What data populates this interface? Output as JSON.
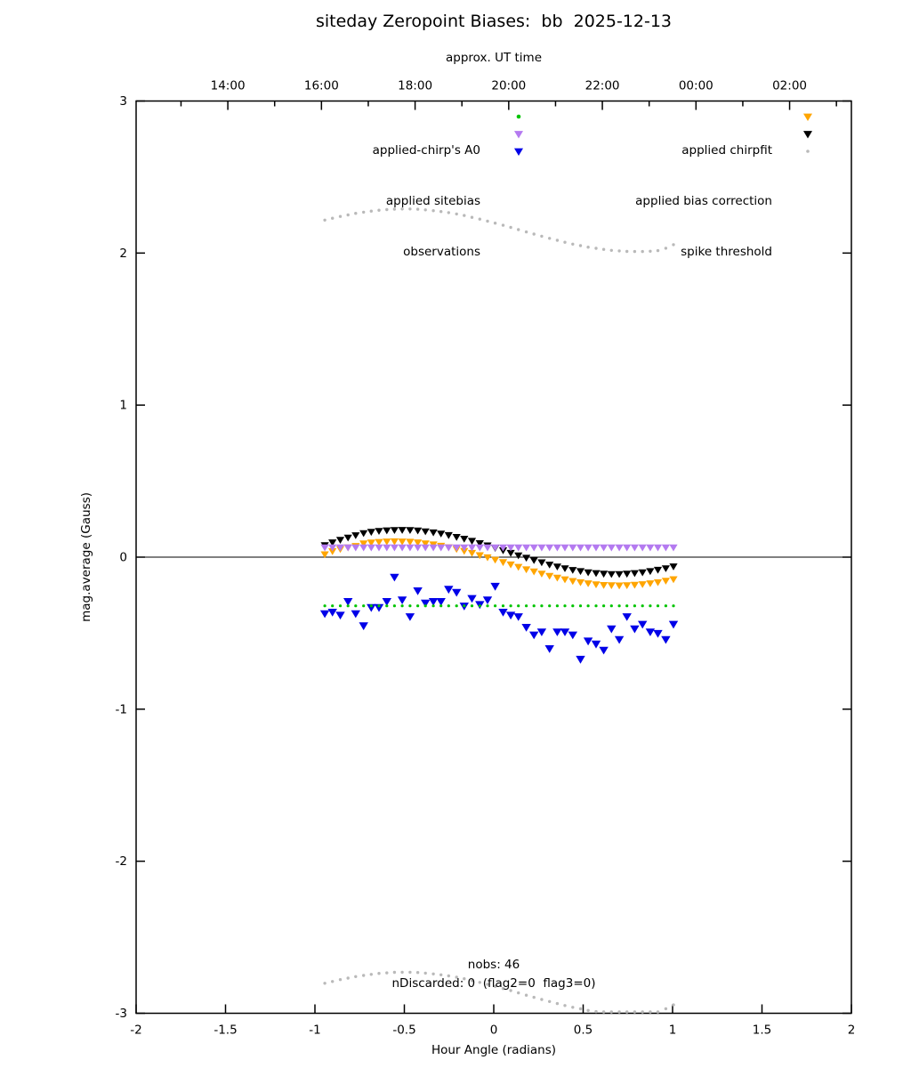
{
  "title": "siteday Zeropoint Biases:  bb  2025-12-13",
  "annotations": {
    "nobs": "nobs: 46",
    "ndiscarded": "nDiscarded: 0  (flag2=0  flag3=0)"
  },
  "colors": {
    "a0_green": "#00c400",
    "sitebias_purple": "#b47af0",
    "observations_blue": "#0000e8",
    "chirpfit_orange": "#ffa500",
    "bias_black": "#000000",
    "spike_gray": "#b9b9b9",
    "frame": "#000000",
    "background": "#ffffff"
  },
  "axes": {
    "x2": {
      "label": "approx. UT time",
      "major": [
        {
          "label": "14:00",
          "ha": -1.4871
        },
        {
          "label": "16:00",
          "ha": -0.9635
        },
        {
          "label": "18:00",
          "ha": -0.4399
        },
        {
          "label": "20:00",
          "ha": 0.0837
        },
        {
          "label": "22:00",
          "ha": 0.6073
        },
        {
          "label": "00:00",
          "ha": 1.1309
        },
        {
          "label": "02:00",
          "ha": 1.6545
        }
      ],
      "minor_ha": [
        -1.7489,
        -1.2253,
        -0.7017,
        -0.1781,
        0.3455,
        0.8691,
        1.3927,
        1.9163
      ]
    },
    "x": {
      "label": "Hour Angle (radians)",
      "range": [
        -2,
        2
      ],
      "ticks": [
        {
          "label": "-2",
          "v": -2
        },
        {
          "label": "-1.5",
          "v": -1.5
        },
        {
          "label": "-1",
          "v": -1
        },
        {
          "label": "-0.5",
          "v": -0.5
        },
        {
          "label": "0",
          "v": 0
        },
        {
          "label": "0.5",
          "v": 0.5
        },
        {
          "label": "1",
          "v": 1
        },
        {
          "label": "1.5",
          "v": 1.5
        },
        {
          "label": "2",
          "v": 2
        }
      ]
    },
    "y": {
      "label": "mag.average (Gauss)",
      "range": [
        -3,
        3
      ],
      "ticks": [
        {
          "label": "3",
          "v": 3
        },
        {
          "label": "2",
          "v": 2
        },
        {
          "label": "1",
          "v": 1
        },
        {
          "label": "0",
          "v": 0
        },
        {
          "label": "-1",
          "v": -1
        },
        {
          "label": "-2",
          "v": -2
        },
        {
          "label": "-3",
          "v": -3
        }
      ],
      "zero_line": true
    }
  },
  "legend": {
    "left": [
      {
        "label": "applied-chirp's A0",
        "marker": "dot",
        "color": "#00c400",
        "size": 2.3
      },
      {
        "label": "applied sitebias",
        "marker": "triangle-down",
        "color": "#b47af0",
        "size": 5
      },
      {
        "label": "observations",
        "marker": "triangle-down",
        "color": "#0000e8",
        "size": 5
      }
    ],
    "right": [
      {
        "label": "applied chirpfit",
        "marker": "triangle-down",
        "color": "#ffa500",
        "size": 5
      },
      {
        "label": "applied bias correction",
        "marker": "triangle-down",
        "color": "#000000",
        "size": 5
      },
      {
        "label": "spike threshold",
        "marker": "dot",
        "color": "#b9b9b9",
        "size": 1.8
      }
    ]
  },
  "chart_data": {
    "type": "scatter",
    "title": "siteday Zeropoint Biases:  bb  2025-12-13",
    "xlabel": "Hour Angle (radians)",
    "x2label": "approx. UT time",
    "ylabel": "mag.average (Gauss)",
    "xlim": [
      -2,
      2
    ],
    "ylim": [
      -3,
      3
    ],
    "grid": false,
    "legend_position": "top-inside-two-columns",
    "nobs": 46,
    "x": [
      -0.945,
      -0.902,
      -0.858,
      -0.815,
      -0.772,
      -0.728,
      -0.685,
      -0.642,
      -0.598,
      -0.555,
      -0.512,
      -0.468,
      -0.425,
      -0.382,
      -0.338,
      -0.295,
      -0.252,
      -0.208,
      -0.165,
      -0.122,
      -0.078,
      -0.035,
      0.008,
      0.052,
      0.095,
      0.138,
      0.182,
      0.225,
      0.268,
      0.312,
      0.355,
      0.398,
      0.442,
      0.485,
      0.528,
      0.572,
      0.615,
      0.658,
      0.702,
      0.745,
      0.788,
      0.832,
      0.875,
      0.918,
      0.962,
      1.005
    ],
    "series": [
      {
        "id": "bias-correction",
        "name": "applied bias correction",
        "marker": "triangle-down",
        "color": "#000000",
        "size": 4.6,
        "y": [
          0.08,
          0.098,
          0.115,
          0.13,
          0.145,
          0.159,
          0.167,
          0.173,
          0.177,
          0.179,
          0.18,
          0.179,
          0.176,
          0.171,
          0.164,
          0.156,
          0.146,
          0.134,
          0.122,
          0.108,
          0.093,
          0.078,
          0.062,
          0.046,
          0.029,
          0.013,
          -0.003,
          -0.019,
          -0.033,
          -0.048,
          -0.061,
          -0.072,
          -0.083,
          -0.091,
          -0.099,
          -0.104,
          -0.108,
          -0.11,
          -0.11,
          -0.108,
          -0.104,
          -0.099,
          -0.091,
          -0.082,
          -0.072,
          -0.06
        ]
      },
      {
        "id": "chirpfit",
        "name": "applied chirpfit",
        "marker": "triangle-down",
        "color": "#ffa500",
        "size": 4.6,
        "y": [
          0.02,
          0.04,
          0.055,
          0.065,
          0.075,
          0.091,
          0.097,
          0.101,
          0.104,
          0.105,
          0.104,
          0.102,
          0.098,
          0.092,
          0.085,
          0.076,
          0.066,
          0.055,
          0.042,
          0.029,
          0.014,
          0.0,
          -0.016,
          -0.032,
          -0.047,
          -0.063,
          -0.079,
          -0.093,
          -0.107,
          -0.122,
          -0.134,
          -0.145,
          -0.156,
          -0.164,
          -0.171,
          -0.178,
          -0.182,
          -0.184,
          -0.185,
          -0.184,
          -0.181,
          -0.177,
          -0.171,
          -0.164,
          -0.154,
          -0.144
        ]
      },
      {
        "id": "sitebias",
        "name": "applied sitebias",
        "marker": "triangle-down",
        "color": "#b47af0",
        "size": 4.6,
        "y_flat": 0.065
      },
      {
        "id": "observations",
        "name": "observations",
        "marker": "triangle-down",
        "color": "#0000e8",
        "size": 5.2,
        "y": [
          -0.37,
          -0.36,
          -0.38,
          -0.29,
          -0.37,
          -0.45,
          -0.33,
          -0.33,
          -0.29,
          -0.13,
          -0.28,
          -0.39,
          -0.22,
          -0.3,
          -0.29,
          -0.29,
          -0.21,
          -0.23,
          -0.32,
          -0.27,
          -0.31,
          -0.28,
          -0.19,
          -0.36,
          -0.38,
          -0.39,
          -0.46,
          -0.51,
          -0.49,
          -0.6,
          -0.49,
          -0.49,
          -0.51,
          -0.67,
          -0.55,
          -0.57,
          -0.61,
          -0.47,
          -0.54,
          -0.39,
          -0.47,
          -0.44,
          -0.49,
          -0.5,
          -0.54,
          -0.44
        ]
      },
      {
        "id": "chirp-a0",
        "name": "applied-chirp's A0",
        "marker": "dot",
        "color": "#00c400",
        "size": 1.6,
        "y_flat": -0.32
      },
      {
        "id": "spike-upper",
        "name": "spike threshold upper",
        "marker": "dot",
        "color": "#b9b9b9",
        "size": 1.7,
        "y": [
          2.217,
          2.229,
          2.241,
          2.251,
          2.261,
          2.269,
          2.276,
          2.282,
          2.286,
          2.289,
          2.29,
          2.29,
          2.288,
          2.284,
          2.279,
          2.273,
          2.266,
          2.257,
          2.247,
          2.235,
          2.223,
          2.21,
          2.197,
          2.183,
          2.169,
          2.154,
          2.139,
          2.125,
          2.111,
          2.097,
          2.084,
          2.071,
          2.059,
          2.049,
          2.039,
          2.031,
          2.024,
          2.018,
          2.014,
          2.011,
          2.01,
          2.01,
          2.012,
          2.016,
          2.032,
          2.055
        ]
      },
      {
        "id": "spike-lower",
        "name": "spike threshold lower",
        "marker": "dot",
        "color": "#b9b9b9",
        "size": 1.7,
        "y": [
          -2.803,
          -2.791,
          -2.779,
          -2.769,
          -2.759,
          -2.751,
          -2.744,
          -2.738,
          -2.734,
          -2.731,
          -2.73,
          -2.73,
          -2.732,
          -2.736,
          -2.741,
          -2.747,
          -2.754,
          -2.763,
          -2.773,
          -2.785,
          -2.797,
          -2.81,
          -2.823,
          -2.837,
          -2.851,
          -2.866,
          -2.881,
          -2.895,
          -2.909,
          -2.923,
          -2.936,
          -2.949,
          -2.961,
          -2.971,
          -2.981,
          -2.989,
          -2.996,
          -3.002,
          -3.006,
          -3.009,
          -3.01,
          -3.01,
          -3.008,
          -3.004,
          -2.97,
          -2.945
        ]
      }
    ]
  }
}
